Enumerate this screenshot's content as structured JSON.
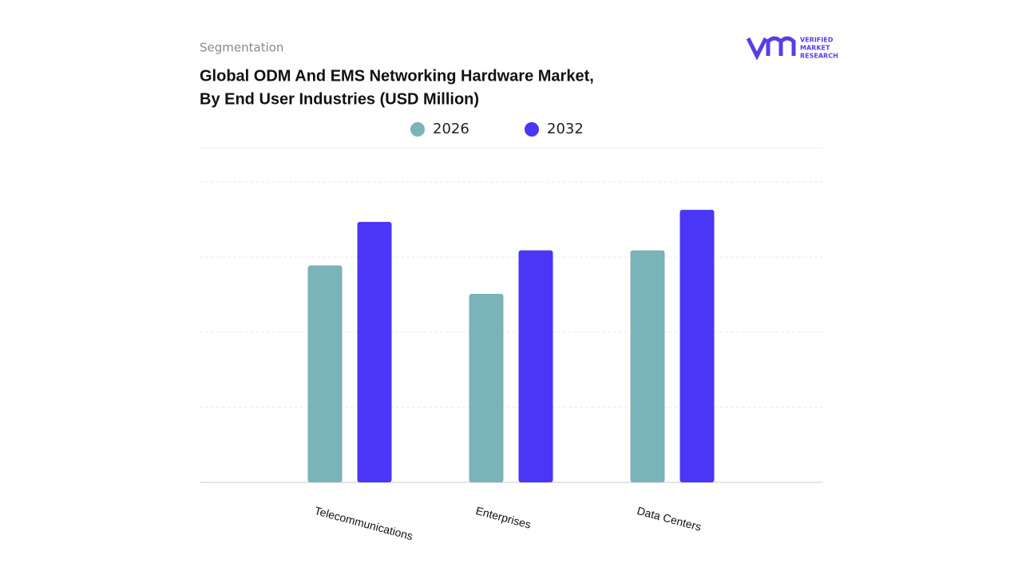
{
  "chart_data": {
    "type": "bar",
    "subtitle": "Segmentation",
    "title": [
      "Global ODM And EMS Networking Hardware Market,",
      "By End User Industries (USD Million)"
    ],
    "categories": [
      "Telecommunications",
      "Enterprises",
      "Data Centers"
    ],
    "series": [
      {
        "name": "2026",
        "color": "#7ab3b8",
        "values": [
          2.89,
          2.51,
          3.09
        ]
      },
      {
        "name": "2032",
        "color": "#4a36f5",
        "values": [
          3.47,
          3.09,
          3.63
        ]
      }
    ],
    "ylim": [
      0,
      4
    ],
    "yticks": [
      0,
      1,
      2,
      3,
      4
    ],
    "grid": true
  },
  "logo": {
    "lines": [
      "VERIFIED",
      "MARKET",
      "RESEARCH"
    ]
  }
}
